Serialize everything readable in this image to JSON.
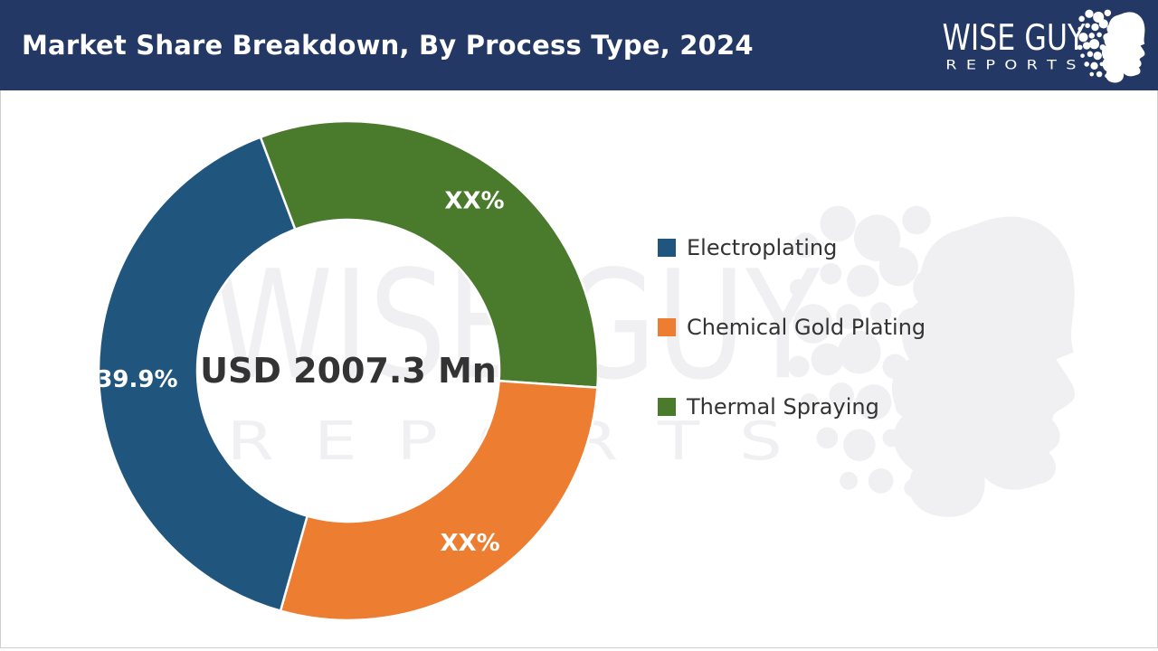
{
  "header": {
    "title": "Market Share Breakdown, By Process Type, 2024",
    "background_color": "#233864"
  },
  "brand": {
    "wordmark": "WISE GUY",
    "subtext": "R E P O R T S",
    "face_icon": "dotted-head-profile-icon"
  },
  "chart_data": {
    "type": "pie",
    "subtype": "donut",
    "title": "Market Share Breakdown, By Process Type, 2024",
    "center_label": "USD 2007.3 Mn",
    "start_angle_deg_from_top_clockwise": -20.6,
    "inner_radius_ratio": 0.605,
    "label_radius_ratio": 0.847,
    "legend_position": "right",
    "segments": [
      {
        "name": "Thermal Spraying",
        "value_pct": 31.8,
        "display_label": "XX%",
        "color": "#4A7A2B"
      },
      {
        "name": "Chemical Gold Plating",
        "value_pct": 28.3,
        "display_label": "XX%",
        "color": "#ED7D31"
      },
      {
        "name": "Electroplating",
        "value_pct": 39.9,
        "display_label": "39.9%",
        "color": "#20567E"
      }
    ]
  },
  "legend": {
    "items": [
      {
        "label": "Electroplating",
        "color": "#20567E"
      },
      {
        "label": "Chemical Gold Plating",
        "color": "#ED7D31"
      },
      {
        "label": "Thermal Spraying",
        "color": "#4A7A2B"
      }
    ]
  },
  "watermark": {
    "color": "#F0F0F3"
  }
}
